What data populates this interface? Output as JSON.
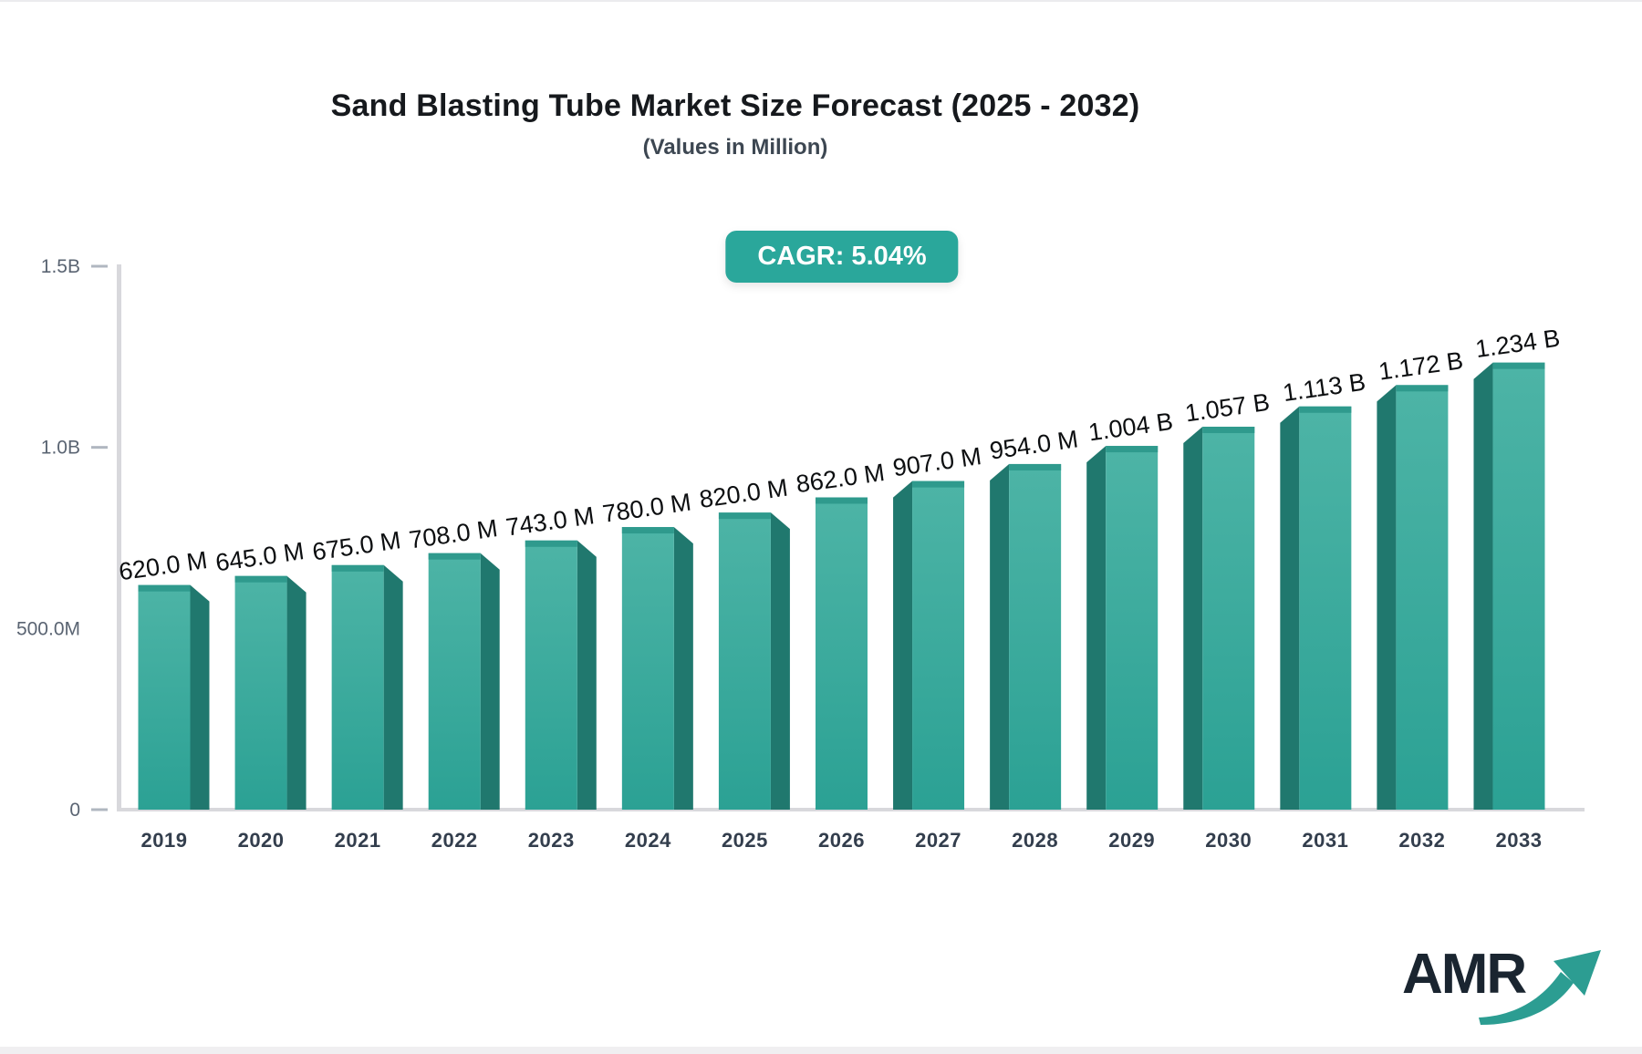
{
  "page": {
    "title": "Sand Blasting Tube Market Size Forecast (2025 - 2032)",
    "subtitle": "(Values in Million)",
    "cagr_badge": "CAGR: 5.04%",
    "logo_text": "AMR"
  },
  "colors": {
    "badge_bg": "#2aa79b",
    "bar_face_top": "#4db4a6",
    "bar_face_bottom": "#2ba194",
    "bar_cap": "#2f9a8d",
    "bar_side": "#20786e",
    "axis_line": "#d8d8dc",
    "tick_dash": "#b0b7c0",
    "y_label": "#5a6472",
    "x_label": "#333e4d",
    "value_label": "#0c0e10",
    "logo_text": "#1a2530",
    "logo_arrow": "#2c9d92"
  },
  "chart_data": {
    "type": "bar",
    "title": "Sand Blasting Tube Market Size Forecast (2025 - 2032)",
    "subtitle": "(Values in Million)",
    "cagr": "5.04%",
    "categories": [
      "2019",
      "2020",
      "2021",
      "2022",
      "2023",
      "2024",
      "2025",
      "2026",
      "2027",
      "2028",
      "2029",
      "2030",
      "2031",
      "2032",
      "2033"
    ],
    "values_millions": [
      620,
      645,
      675,
      708,
      743,
      780,
      820,
      862,
      907,
      954,
      1004,
      1057,
      1113,
      1172,
      1234
    ],
    "value_labels": [
      "620.0 M",
      "645.0 M",
      "675.0 M",
      "708.0 M",
      "743.0 M",
      "780.0 M",
      "820.0 M",
      "862.0 M",
      "907.0 M",
      "954.0 M",
      "1.004 B",
      "1.057 B",
      "1.113 B",
      "1.172 B",
      "1.234 B"
    ],
    "xlabel": "",
    "ylabel": "",
    "ylim_millions": [
      0,
      1500
    ],
    "yticks": [
      {
        "label": "1.5B",
        "value_millions": 1500,
        "dash": true
      },
      {
        "label": "1.0B",
        "value_millions": 1000,
        "dash": true
      },
      {
        "label": "500.0M",
        "value_millions": 500,
        "dash": false
      },
      {
        "label": "0",
        "value_millions": 0,
        "dash": true
      }
    ],
    "grid": false,
    "legend": null
  }
}
